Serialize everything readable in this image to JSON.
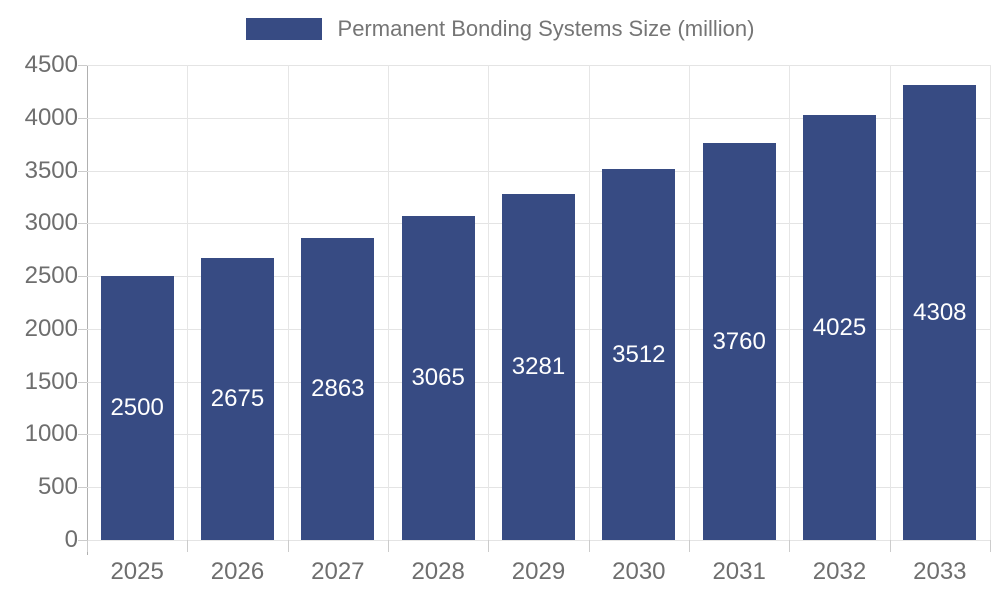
{
  "legend": {
    "label": "Permanent Bonding Systems Size (million)",
    "swatch_color": "#374b83"
  },
  "chart_data": {
    "type": "bar",
    "title": "",
    "xlabel": "",
    "ylabel": "",
    "categories": [
      "2025",
      "2026",
      "2027",
      "2028",
      "2029",
      "2030",
      "2031",
      "2032",
      "2033"
    ],
    "series": [
      {
        "name": "Permanent Bonding Systems Size (million)",
        "values": [
          2500,
          2675,
          2863,
          3065,
          3281,
          3512,
          3760,
          4025,
          4308
        ]
      }
    ],
    "value_labels_shown": true,
    "ylim": [
      0,
      4500
    ],
    "ytick_step": 500,
    "ytick_labels": [
      "0",
      "500",
      "1000",
      "1500",
      "2000",
      "2500",
      "3000",
      "3500",
      "4000",
      "4500"
    ],
    "grid": true,
    "legend_position": "top-center",
    "colors": {
      "bar": "#374b83",
      "bar_value_label": "#ffffff",
      "tick_text": "#6e6e6e",
      "legend_text": "#757575",
      "gridline": "#e4e4e4",
      "axis_line": "#b0b0b0",
      "background": "#ffffff"
    }
  }
}
